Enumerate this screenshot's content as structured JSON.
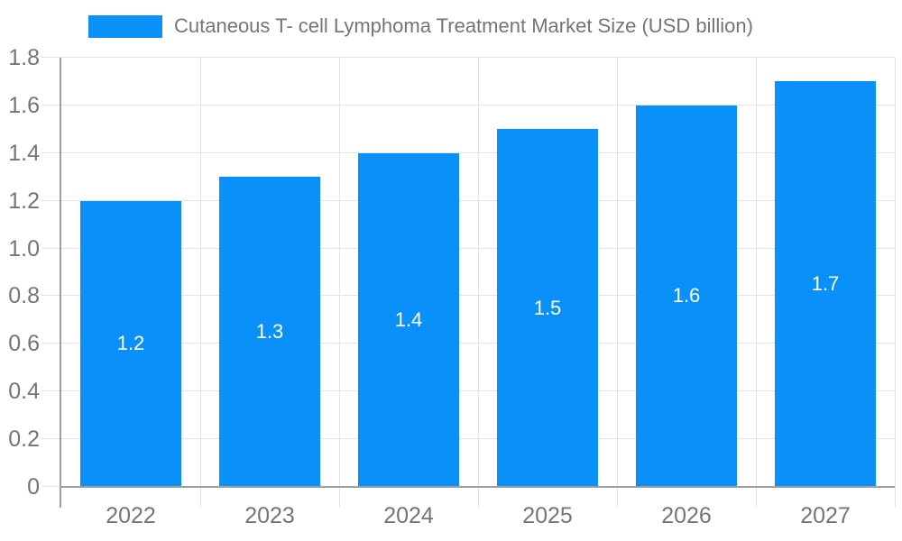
{
  "chart_data": {
    "type": "bar",
    "title": "Cutaneous T- cell Lymphoma Treatment Market Size (USD billion)",
    "categories": [
      "2022",
      "2023",
      "2024",
      "2025",
      "2026",
      "2027"
    ],
    "values": [
      1.2,
      1.3,
      1.4,
      1.5,
      1.6,
      1.7
    ],
    "bar_labels": [
      "1.2",
      "1.3",
      "1.4",
      "1.5",
      "1.6",
      "1.7"
    ],
    "ylim": [
      0,
      1.8
    ],
    "ytick_step": 0.2,
    "ytick_labels": [
      "0",
      "0.2",
      "0.4",
      "0.6",
      "0.8",
      "1.0",
      "1.2",
      "1.4",
      "1.6",
      "1.8"
    ],
    "xlabel": "",
    "ylabel": "",
    "grid": true,
    "legend_position": "top",
    "colors": {
      "bar": "#0991f9",
      "axis_line": "#9e9e9e",
      "gridline": "#e3e3e3",
      "tick_text": "#757575",
      "bar_label_text": "#ffffff",
      "background": "#ffffff"
    }
  }
}
